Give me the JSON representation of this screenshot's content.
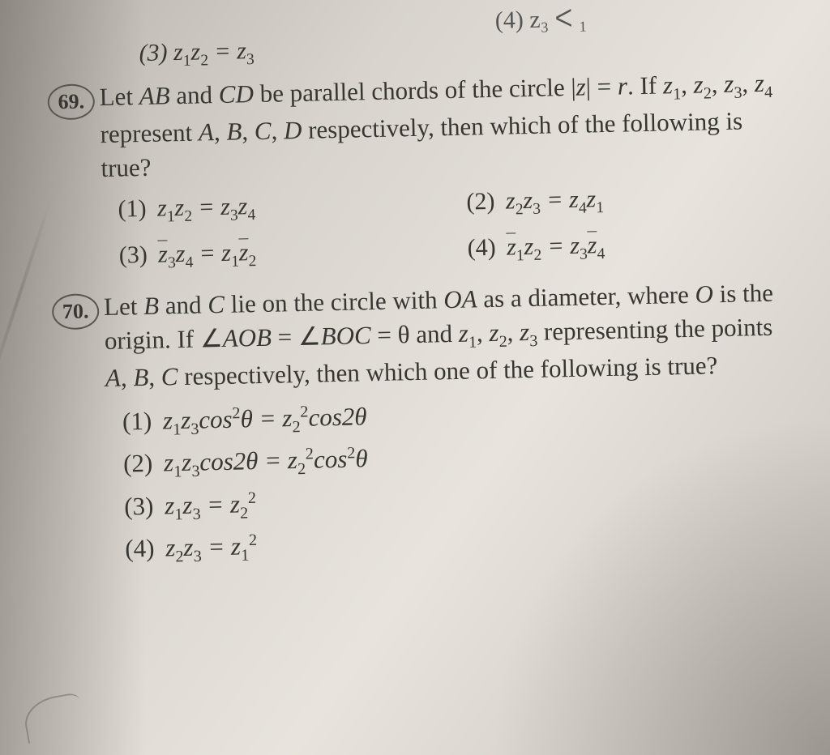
{
  "fragment_top": "(4)  z₃ ᐸ ₁",
  "option_top": {
    "num": "(3)",
    "expr_html": "z<span class='sub'>1</span>z<span class='sub'>2</span> = z<span class='sub'>3</span>"
  },
  "q69": {
    "number": "69.",
    "text_html": "Let <span class='it'>AB</span> and <span class='it'>CD</span> be parallel chords of the circle |<span class='it'>z</span>| = <span class='it'>r</span>. If <span class='it'>z</span><span class='sub'>1</span>, <span class='it'>z</span><span class='sub'>2</span>, <span class='it'>z</span><span class='sub'>3</span>, <span class='it'>z</span><span class='sub'>4</span> represent <span class='it'>A</span>, <span class='it'>B</span>, <span class='it'>C</span>, <span class='it'>D</span> respectively, then which of the following is true?",
    "options": [
      {
        "num": "(1)",
        "expr_html": "z<span class='sub'>1</span>z<span class='sub'>2</span> = z<span class='sub'>3</span>z<span class='sub'>4</span>"
      },
      {
        "num": "(2)",
        "expr_html": "z<span class='sub'>2</span>z<span class='sub'>3</span> = z<span class='sub'>4</span>z<span class='sub'>1</span>"
      },
      {
        "num": "(3)",
        "expr_html": "<span class='over'>z</span><span class='sub'>3</span>z<span class='sub'>4</span> = z<span class='sub'>1</span><span class='over'>z</span><span class='sub'>2</span>"
      },
      {
        "num": "(4)",
        "expr_html": "<span class='over'>z</span><span class='sub'>1</span>z<span class='sub'>2</span> = z<span class='sub'>3</span><span class='over'>z</span><span class='sub'>4</span>"
      }
    ]
  },
  "q70": {
    "number": "70.",
    "text_html": "Let <span class='it'>B</span> and <span class='it'>C</span> lie on the circle with <span class='it'>OA</span> as a diameter, where <span class='it'>O</span> is the origin. If ∠<span class='it'>AOB</span> = ∠<span class='it'>BOC</span> = θ and <span class='it'>z</span><span class='sub'>1</span>, <span class='it'>z</span><span class='sub'>2</span>, <span class='it'>z</span><span class='sub'>3</span> representing the points <span class='it'>A</span>, <span class='it'>B</span>, <span class='it'>C</span> respectively, then which one of the following is true?",
    "options": [
      {
        "num": "(1)",
        "expr_html": "z<span class='sub'>1</span>z<span class='sub'>3</span>cos<span class='sup'>2</span>θ = z<span class='sub'>2</span><span class='sup'>2</span>cos2θ"
      },
      {
        "num": "(2)",
        "expr_html": "z<span class='sub'>1</span>z<span class='sub'>3</span>cos2θ = z<span class='sub'>2</span><span class='sup'>2</span>cos<span class='sup'>2</span>θ"
      },
      {
        "num": "(3)",
        "expr_html": "z<span class='sub'>1</span>z<span class='sub'>3</span> = z<span class='sub'>2</span><span class='sup'>2</span>"
      },
      {
        "num": "(4)",
        "expr_html": "z<span class='sub'>2</span>z<span class='sub'>3</span> = z<span class='sub'>1</span><span class='sup'>2</span>"
      }
    ]
  },
  "colors": {
    "text": "#383632",
    "bg_light": "#e8e4dd",
    "bg_dark": "#b8b4ad"
  }
}
